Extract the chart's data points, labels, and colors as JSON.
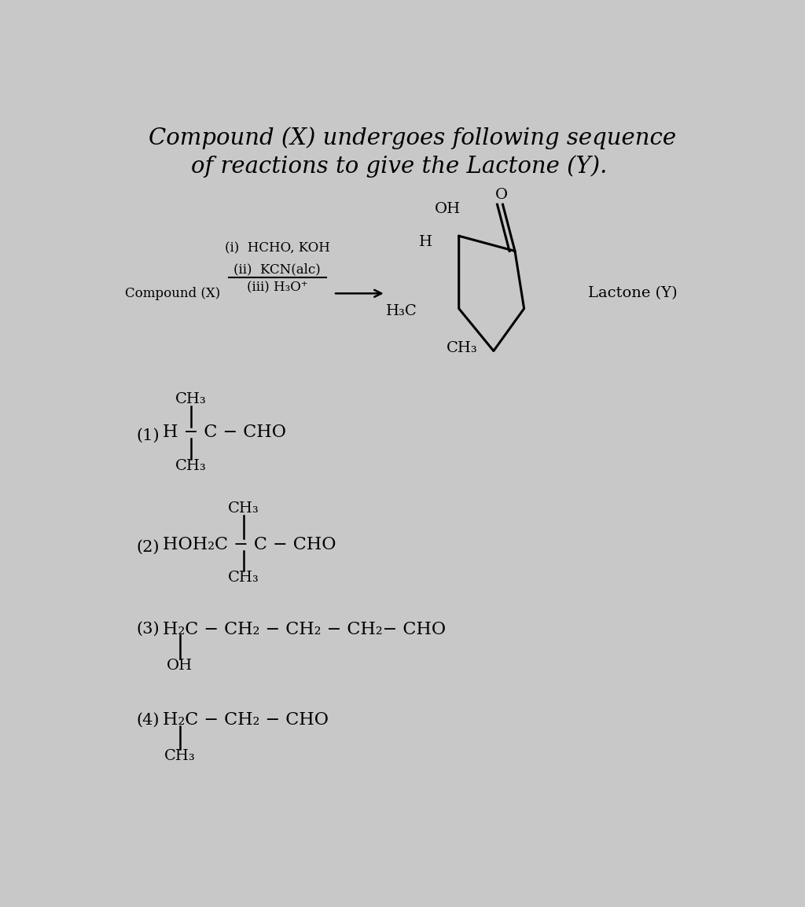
{
  "bg_color": "#c8c8c8",
  "title_line1": "Compound (X) undergoes following sequence",
  "title_line2": "of reactions to give the Lactone (Y).",
  "reaction_label_left": "Compound (X)",
  "lactone_label": "Lactone (Y)",
  "opt1_num": "(1)",
  "opt1_main": "H − C − CHO",
  "opt1_top": "CH₃",
  "opt1_bot": "CH₃",
  "opt2_num": "(2)",
  "opt2_main": "HOH₂C − C − CHO",
  "opt2_top": "CH₃",
  "opt2_bot": "CH₃",
  "opt3_num": "(3)",
  "opt3_main": "H₂C − CH₂ − CH₂ − CH₂− CHO",
  "opt3_bot": "OH",
  "opt4_num": "(4)",
  "opt4_main": "H₂C − CH₂ − CHO",
  "opt4_bot": "CH₃"
}
